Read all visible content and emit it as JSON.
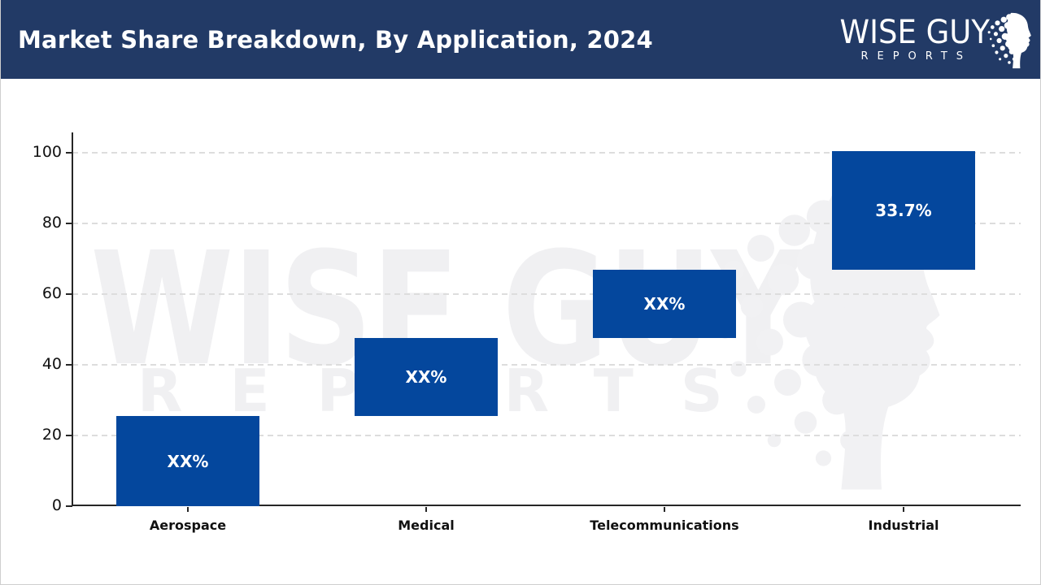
{
  "header": {
    "title": "Market Share Breakdown, By Application, 2024",
    "logo": {
      "wordmark": "WISE GUY",
      "subtext": "REPORTS",
      "face_icon": "dotted-head-profile-icon"
    }
  },
  "watermark": {
    "wordmark": "WISE GUY",
    "subtext": "REPORTS",
    "face_icon": "dotted-head-profile-watermark"
  },
  "colors": {
    "header_bg": "#223a66",
    "bar_blue": "#04479d",
    "axis": "#262626",
    "grid": "#dddddd",
    "tick_text": "#111111",
    "bar_label_text": "#ffffff",
    "watermark": "#f0f0f2"
  },
  "chart_data": {
    "type": "bar",
    "subtype": "waterfall",
    "title": "Market Share Breakdown, By Application, 2024",
    "xlabel": "",
    "ylabel": "",
    "categories": [
      "Aerospace",
      "Medical",
      "Telecommunications",
      "Industrial"
    ],
    "bar_labels": [
      "XX%",
      "XX%",
      "XX%",
      "33.7%"
    ],
    "segments": [
      {
        "category": "Aerospace",
        "start": 0,
        "end": 25.5,
        "increment": 25.5,
        "label": "XX%"
      },
      {
        "category": "Medical",
        "start": 25.5,
        "end": 47.5,
        "increment": 22.0,
        "label": "XX%"
      },
      {
        "category": "Telecommunications",
        "start": 47.5,
        "end": 66.8,
        "increment": 19.3,
        "label": "XX%"
      },
      {
        "category": "Industrial",
        "start": 66.8,
        "end": 100.5,
        "increment": 33.7,
        "label": "33.7%"
      }
    ],
    "y_ticks": [
      0,
      20,
      40,
      60,
      80,
      100
    ],
    "ylim": [
      0,
      105.7
    ],
    "grid": "horizontal dashed",
    "legend_position": "none"
  }
}
